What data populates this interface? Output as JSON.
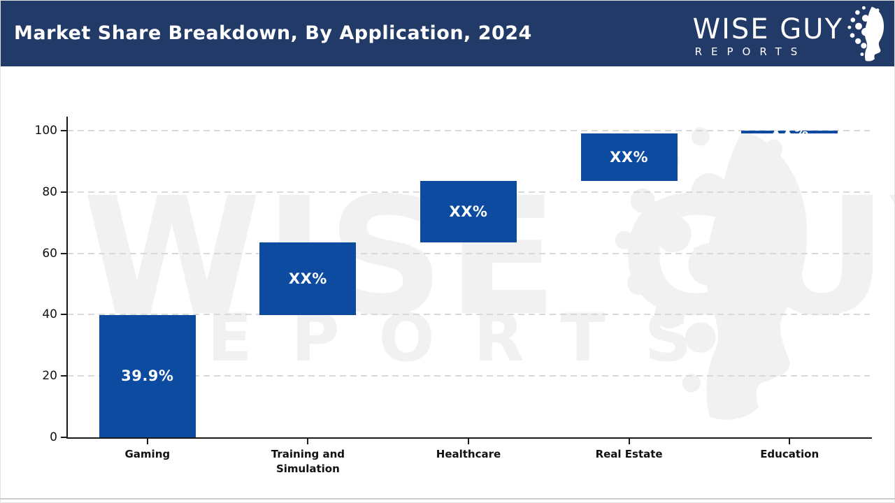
{
  "header": {
    "title": "Market Share Breakdown, By Application, 2024",
    "logo": {
      "line1": "WISE GUY",
      "line2": "REPORTS"
    }
  },
  "watermark": {
    "line1": "WISE GUY",
    "line2": "REPORTS"
  },
  "colors": {
    "header_bg": "#223a67",
    "bar_blue": "#0c4ba0",
    "gridline": "#d9d9d9",
    "watermark": "#f1f1f1"
  },
  "chart_data": {
    "type": "bar",
    "subtype": "waterfall",
    "title": "Market Share Breakdown, By Application, 2024",
    "xlabel": "",
    "ylabel": "",
    "ylim": [
      0,
      100
    ],
    "yticks": [
      0,
      20,
      40,
      60,
      80,
      100
    ],
    "grid": "horizontal-dashed",
    "legend": "none",
    "bar_color": "#0c4ba0",
    "categories": [
      "Gaming",
      "Training and\nSimulation",
      "Healthcare",
      "Real Estate",
      "Education"
    ],
    "segments": [
      {
        "category": "Gaming",
        "start": 0,
        "end": 39.9,
        "label": "39.9%"
      },
      {
        "category": "Training and Simulation",
        "start": 39.9,
        "end": 63.5,
        "label": "XX%"
      },
      {
        "category": "Healthcare",
        "start": 63.5,
        "end": 83.6,
        "label": "XX%"
      },
      {
        "category": "Real Estate",
        "start": 83.6,
        "end": 99.2,
        "label": "XX%"
      },
      {
        "category": "Education",
        "start": 99.2,
        "end": 100,
        "label": "XX%"
      }
    ]
  }
}
